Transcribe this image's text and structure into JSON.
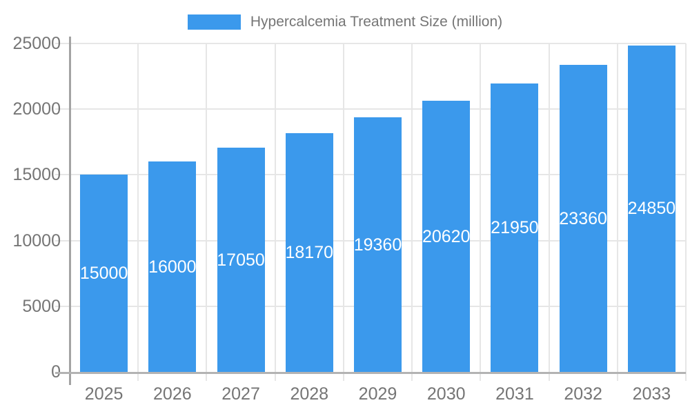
{
  "legend": {
    "label": "Hypercalcemia Treatment Size (million)"
  },
  "chart_data": {
    "type": "bar",
    "title": "Hypercalcemia Treatment Size (million)",
    "categories": [
      "2025",
      "2026",
      "2027",
      "2028",
      "2029",
      "2030",
      "2031",
      "2032",
      "2033"
    ],
    "values": [
      15000,
      16000,
      17050,
      18170,
      19360,
      20620,
      21950,
      23360,
      24850
    ],
    "series": [
      {
        "name": "Hypercalcemia Treatment Size (million)",
        "values": [
          15000,
          16000,
          17050,
          18170,
          19360,
          20620,
          21950,
          23360,
          24850
        ]
      }
    ],
    "xlabel": "",
    "ylabel": "",
    "ylim": [
      0,
      25000
    ],
    "yticks": [
      0,
      5000,
      10000,
      15000,
      20000,
      25000
    ],
    "grid": true,
    "legend_position": "top-center",
    "value_label_position": "inside-center",
    "bar_color": "#3b99ec",
    "text_color": "#757575",
    "grid_color": "#e6e6e6",
    "y_axis_color": "#a3a3a3",
    "x_axis_color": "#b3b3b3",
    "value_label_color": "#ffffff"
  }
}
